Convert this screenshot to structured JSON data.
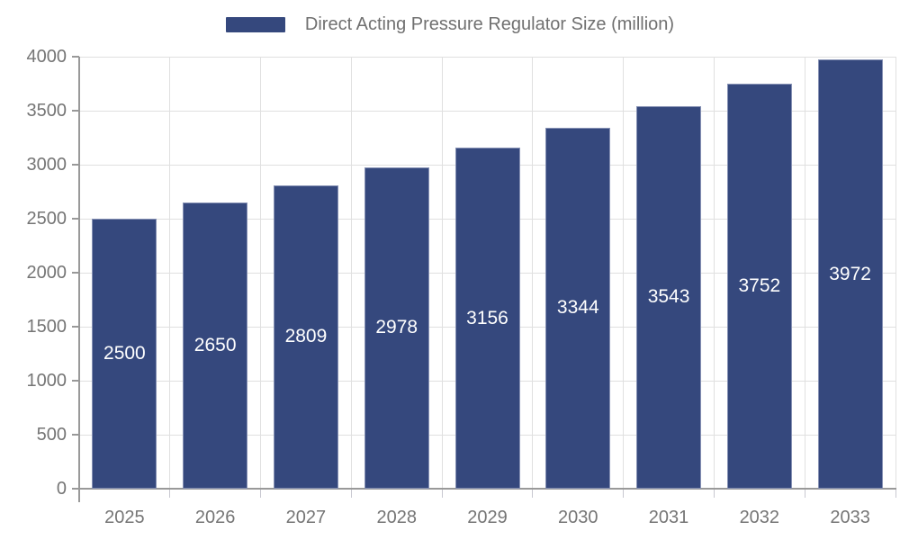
{
  "chart_data": {
    "type": "bar",
    "title": "Direct Acting Pressure Regulator Size (million)",
    "categories": [
      "2025",
      "2026",
      "2027",
      "2028",
      "2029",
      "2030",
      "2031",
      "2032",
      "2033"
    ],
    "values": [
      2500,
      2650,
      2809,
      2978,
      3156,
      3344,
      3543,
      3752,
      3972
    ],
    "xlabel": "",
    "ylabel": "",
    "ylim": [
      0,
      4000
    ],
    "y_ticks": [
      0,
      500,
      1000,
      1500,
      2000,
      2500,
      3000,
      3500,
      4000
    ],
    "grid": true,
    "legend_position": "top-center",
    "bar_color": "#35487d",
    "value_label_color": "#ffffff",
    "axis_text_color": "#757575"
  },
  "legend": {
    "label": "Direct Acting Pressure Regulator Size (million)",
    "swatch_color": "#35487d"
  }
}
